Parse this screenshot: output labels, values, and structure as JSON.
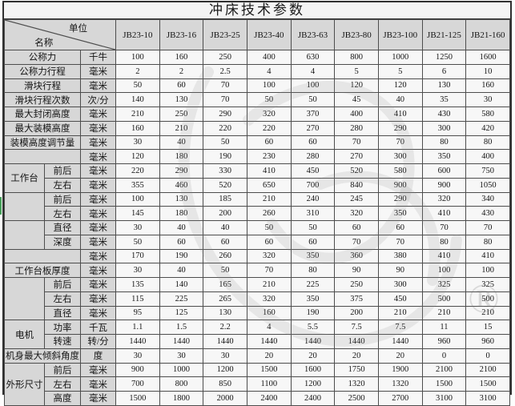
{
  "title": "冲床技术参数",
  "header": {
    "unit_label": "单位",
    "name_label": "名称",
    "models": [
      "JB23-10",
      "JB23-16",
      "JB23-25",
      "JB23-40",
      "JB23-63",
      "JB23-80",
      "JB23-100",
      "JB21-125",
      "JB21-160"
    ]
  },
  "rows": [
    {
      "name": "公称力",
      "unit": "千牛",
      "values": [
        "100",
        "160",
        "250",
        "400",
        "630",
        "800",
        "1000",
        "1250",
        "1600"
      ]
    },
    {
      "name": "公称力行程",
      "unit": "毫米",
      "values": [
        "2",
        "2",
        "2.5",
        "4",
        "4",
        "5",
        "5",
        "6",
        "10"
      ]
    },
    {
      "name": "滑块行程",
      "unit": "毫米",
      "values": [
        "50",
        "60",
        "70",
        "100",
        "100",
        "120",
        "120",
        "130",
        "160"
      ]
    },
    {
      "name": "滑块行程次数",
      "unit": "次/分",
      "values": [
        "140",
        "130",
        "70",
        "50",
        "50",
        "45",
        "40",
        "35",
        "30"
      ]
    },
    {
      "name": "最大封闭高度",
      "unit": "毫米",
      "values": [
        "210",
        "250",
        "290",
        "320",
        "370",
        "400",
        "410",
        "430",
        "580"
      ]
    },
    {
      "name": "最大装模高度",
      "unit": "毫米",
      "values": [
        "160",
        "210",
        "220",
        "220",
        "270",
        "280",
        "290",
        "300",
        "420"
      ]
    },
    {
      "name": "装模高度调节量",
      "unit": "毫米",
      "values": [
        "30",
        "40",
        "50",
        "60",
        "60",
        "70",
        "70",
        "80",
        "80"
      ]
    },
    {
      "name": "",
      "unit": "毫米",
      "values": [
        "120",
        "180",
        "190",
        "230",
        "280",
        "270",
        "300",
        "350",
        "400"
      ]
    },
    {
      "section": {
        "label": "工作台",
        "span": 2
      },
      "sub": "前后",
      "unit": "毫米",
      "values": [
        "220",
        "290",
        "330",
        "410",
        "450",
        "520",
        "580",
        "600",
        "750"
      ]
    },
    {
      "sub": "左右",
      "unit": "毫米",
      "values": [
        "355",
        "460",
        "520",
        "650",
        "700",
        "840",
        "900",
        "900",
        "1050"
      ]
    },
    {
      "section": {
        "label": "",
        "span": 2
      },
      "sub": "前后",
      "unit": "毫米",
      "values": [
        "100",
        "130",
        "185",
        "210",
        "240",
        "245",
        "290",
        "320",
        "340"
      ]
    },
    {
      "sub": "左右",
      "unit": "毫米",
      "values": [
        "145",
        "180",
        "200",
        "260",
        "310",
        "320",
        "350",
        "410",
        "430"
      ]
    },
    {
      "section": {
        "label": "",
        "span": 2
      },
      "sub": "直径",
      "unit": "毫米",
      "values": [
        "30",
        "40",
        "40",
        "50",
        "50",
        "60",
        "60",
        "70",
        "70"
      ]
    },
    {
      "sub": "深度",
      "unit": "毫米",
      "values": [
        "50",
        "60",
        "60",
        "60",
        "60",
        "70",
        "70",
        "80",
        "80"
      ]
    },
    {
      "name": "",
      "unit": "毫米",
      "values": [
        "170",
        "190",
        "260",
        "320",
        "350",
        "360",
        "380",
        "410",
        "410"
      ]
    },
    {
      "name": "工作台板厚度",
      "unit": "毫米",
      "values": [
        "30",
        "40",
        "50",
        "70",
        "80",
        "90",
        "90",
        "100",
        "100"
      ]
    },
    {
      "section": {
        "label": "",
        "span": 3
      },
      "sub": "前后",
      "unit": "毫米",
      "values": [
        "135",
        "140",
        "165",
        "210",
        "225",
        "250",
        "300",
        "325",
        "325"
      ]
    },
    {
      "sub": "左右",
      "unit": "毫米",
      "values": [
        "115",
        "225",
        "265",
        "320",
        "350",
        "375",
        "450",
        "500",
        "500"
      ]
    },
    {
      "sub": "直径",
      "unit": "毫米",
      "values": [
        "95",
        "125",
        "130",
        "160",
        "190",
        "200",
        "210",
        "210",
        "210"
      ]
    },
    {
      "section": {
        "label": "电机",
        "span": 2
      },
      "sub": "功率",
      "unit": "千瓦",
      "values": [
        "1.1",
        "1.5",
        "2.2",
        "4",
        "5.5",
        "7.5",
        "7.5",
        "11",
        "15"
      ]
    },
    {
      "sub": "转速",
      "unit": "转/分",
      "values": [
        "1440",
        "1440",
        "1440",
        "1440",
        "1440",
        "1440",
        "1440",
        "960",
        "960"
      ]
    },
    {
      "name": "机身最大倾斜角度",
      "unit": "度",
      "values": [
        "30",
        "30",
        "30",
        "20",
        "20",
        "20",
        "20",
        "0",
        "0"
      ]
    },
    {
      "section": {
        "label": "外形尺寸",
        "span": 3
      },
      "sub": "前后",
      "unit": "毫米",
      "values": [
        "900",
        "1000",
        "1200",
        "1500",
        "1600",
        "1750",
        "1900",
        "2100",
        "2100"
      ]
    },
    {
      "sub": "左右",
      "unit": "毫米",
      "values": [
        "700",
        "800",
        "850",
        "1100",
        "1200",
        "1320",
        "1320",
        "1500",
        "1500"
      ]
    },
    {
      "sub": "高度",
      "unit": "毫米",
      "values": [
        "1500",
        "1800",
        "2000",
        "2400",
        "2400",
        "2500",
        "2700",
        "3100",
        "3100"
      ]
    }
  ],
  "watermark": {
    "symbol": "®"
  },
  "colors": {
    "green_mark": "#47a05a",
    "cell_gray": "#d7d7d7",
    "grid_line": "#4d4d4d"
  }
}
